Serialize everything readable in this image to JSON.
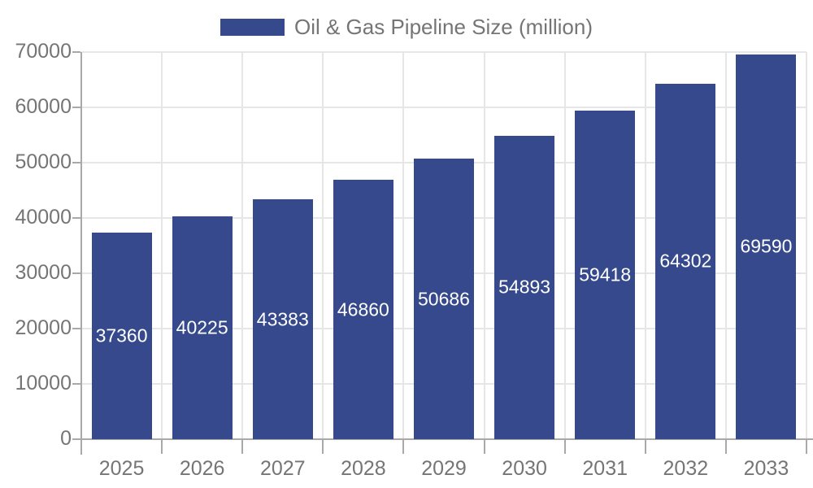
{
  "chart_data": {
    "type": "bar",
    "title": "Oil & Gas Pipeline Size (million)",
    "categories": [
      "2025",
      "2026",
      "2027",
      "2028",
      "2029",
      "2030",
      "2031",
      "2032",
      "2033"
    ],
    "values": [
      37360,
      40225,
      43383,
      46860,
      50686,
      54893,
      59418,
      64302,
      69590
    ],
    "xlabel": "",
    "ylabel": "",
    "ylim": [
      0,
      70000
    ],
    "yticks": [
      0,
      10000,
      20000,
      30000,
      40000,
      50000,
      60000,
      70000
    ],
    "grid": "horizontal and vertical light gray gridlines",
    "legend_position": "top-center",
    "bar_value_labels": "white, centered inside each bar",
    "colors": {
      "bar": "#36498d",
      "bar_label_text": "#ffffff",
      "axis_text": "#757575",
      "axis_line": "#a9a9a9",
      "grid_line": "#e6e6e6",
      "background": "#ffffff"
    }
  }
}
